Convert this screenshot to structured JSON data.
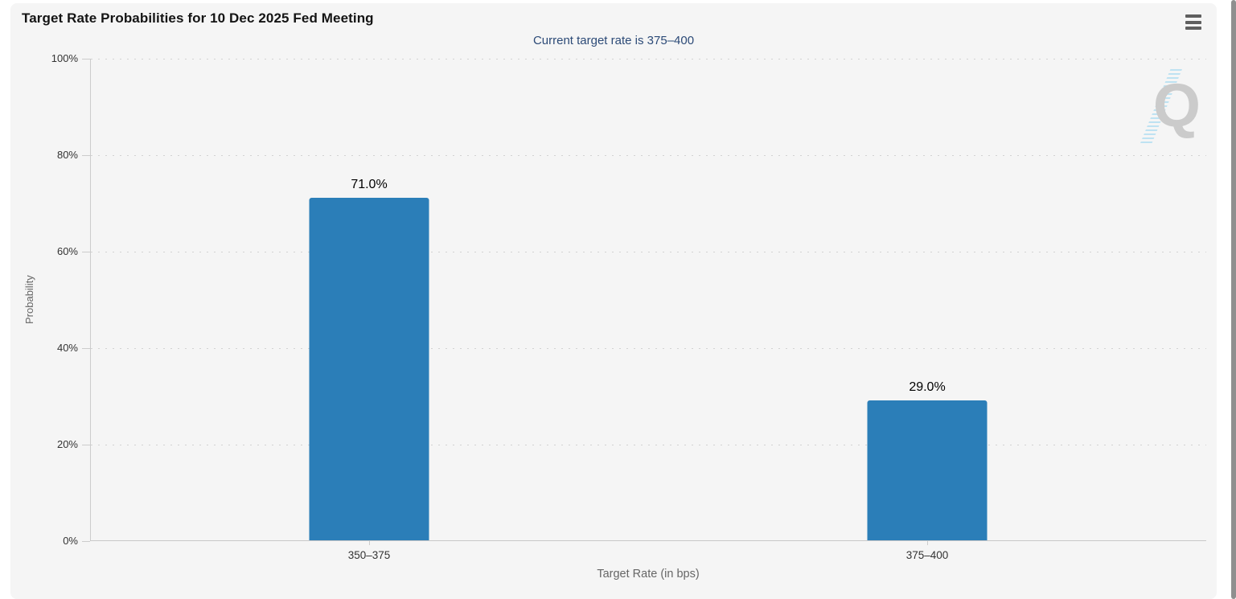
{
  "chart_data": {
    "type": "bar",
    "title": "Target Rate Probabilities for 10 Dec 2025 Fed Meeting",
    "subtitle": "Current target rate is 375–400",
    "categories": [
      "350–375",
      "375–400"
    ],
    "values": [
      71.0,
      29.0
    ],
    "value_labels": [
      "71.0%",
      "29.0%"
    ],
    "xlabel": "Target Rate (in bps)",
    "ylabel": "Probability",
    "ylim": [
      0,
      100
    ],
    "yticks": [
      0,
      20,
      40,
      60,
      80,
      100
    ],
    "ytick_labels": [
      "0%",
      "20%",
      "40%",
      "60%",
      "80%",
      "100%"
    ],
    "bar_color": "#2b7eb8",
    "grid": "dotted-horizontal",
    "legend": "none"
  },
  "watermark": {
    "letter": "Q"
  },
  "icons": {
    "menu": "hamburger-menu-icon"
  },
  "colors": {
    "background": "#f5f5f5",
    "bar": "#2b7eb8",
    "subtitle_text": "#2c4a77",
    "grid": "#d2d2d2",
    "axis_text": "#333333",
    "axis_title_text": "#666666",
    "watermark_q": "#c7c7c7",
    "watermark_stripes": "#b9e1f2"
  }
}
